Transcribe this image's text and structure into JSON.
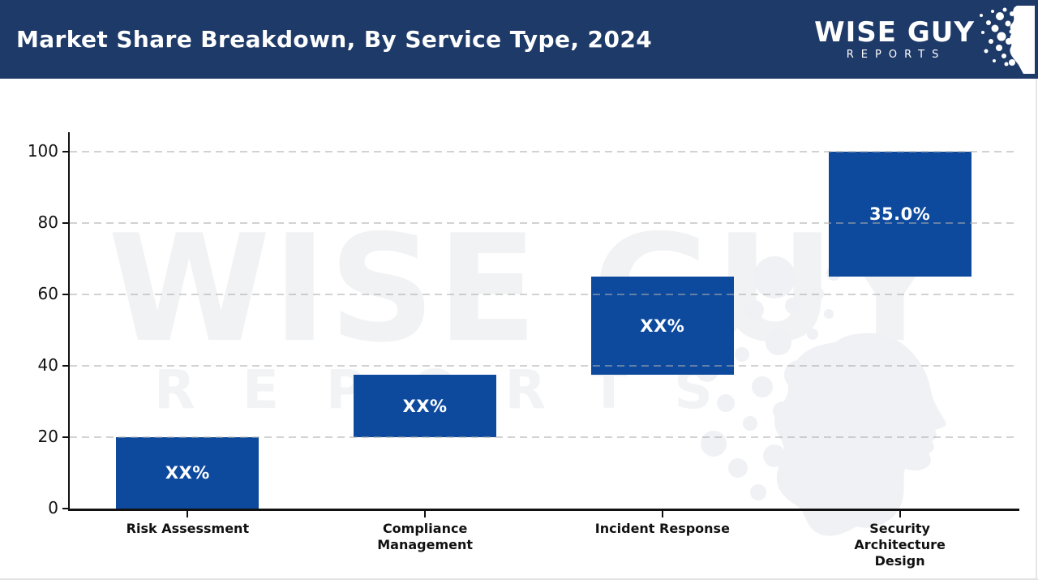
{
  "header": {
    "title": "Market Share Breakdown, By Service Type, 2024",
    "bg_color": "#1e3a68",
    "logo": {
      "name": "WISE GUY",
      "sub": "REPORTS"
    }
  },
  "watermark": {
    "line1": "WISE GUY",
    "line2": "REPORTS"
  },
  "chart_data": {
    "type": "bar",
    "subtype": "floating-segment-waterfall",
    "title": "Market Share Breakdown, By Service Type, 2024",
    "categories": [
      "Risk Assessment",
      "Compliance Management",
      "Incident Response",
      "Security Architecture Design"
    ],
    "segments": [
      {
        "category_lines": [
          "Risk Assessment"
        ],
        "start": 0,
        "end": 20,
        "label": "XX%"
      },
      {
        "category_lines": [
          "Compliance",
          "Management"
        ],
        "start": 20,
        "end": 37.5,
        "label": "XX%"
      },
      {
        "category_lines": [
          "Incident Response"
        ],
        "start": 37.5,
        "end": 65,
        "label": "XX%"
      },
      {
        "category_lines": [
          "Security",
          "Architecture",
          "Design"
        ],
        "start": 65,
        "end": 100,
        "label": "35.0%"
      }
    ],
    "yticks": [
      0,
      20,
      40,
      60,
      80,
      100
    ],
    "ylim": [
      0,
      100
    ],
    "xlabel": "",
    "ylabel": "",
    "bar_color": "#0d4a9e",
    "grid": true,
    "grid_style": "dashed",
    "gridline_color": "#d3d3d3",
    "legend": false
  }
}
